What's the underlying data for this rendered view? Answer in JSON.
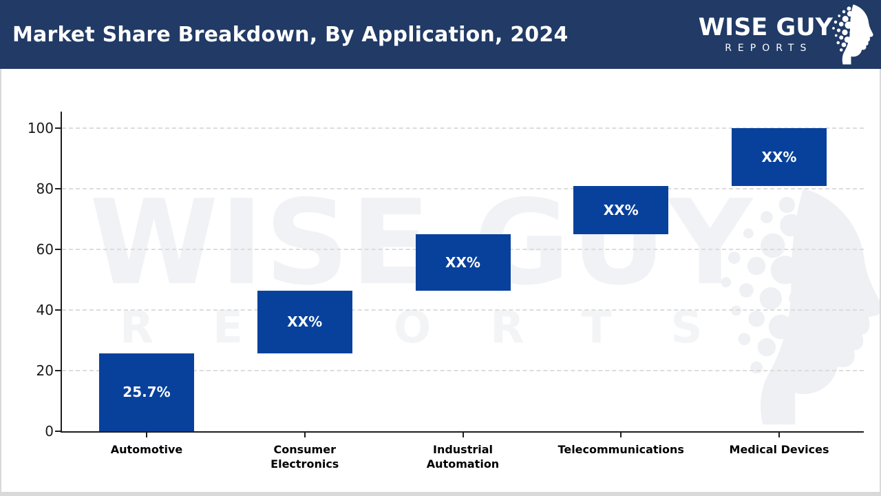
{
  "header": {
    "title": "Market Share Breakdown, By Application, 2024",
    "brand": {
      "name": "WISE GUY",
      "sub": "REPORTS"
    }
  },
  "watermark": {
    "line1": "WISE GUY",
    "line2": "REPORTS"
  },
  "colors": {
    "header_bg": "#213a66",
    "bar": "#08419c",
    "grid": "#dcdcdc",
    "axis": "#1d1d1d",
    "watermark_text": "#f1f2f5",
    "page_border": "#d9d9d9",
    "bar_label": "#ffffff"
  },
  "chart_data": {
    "type": "bar",
    "subtype": "waterfall",
    "title": "Market Share Breakdown, By Application, 2024",
    "xlabel": "",
    "ylabel": "",
    "categories": [
      "Automotive",
      "Consumer\nElectronics",
      "Industrial\nAutomation",
      "Telecommunications",
      "Medical Devices"
    ],
    "segments": [
      {
        "category": "Automotive",
        "start": 0,
        "end": 25.7,
        "label": "25.7%"
      },
      {
        "category": "Consumer Electronics",
        "start": 25.7,
        "end": 46.4,
        "label": "XX%"
      },
      {
        "category": "Industrial Automation",
        "start": 46.4,
        "end": 65.1,
        "label": "XX%"
      },
      {
        "category": "Telecommunications",
        "start": 65.1,
        "end": 80.8,
        "label": "XX%"
      },
      {
        "category": "Medical Devices",
        "start": 80.8,
        "end": 100,
        "label": "XX%"
      }
    ],
    "yticks": [
      0,
      20,
      40,
      60,
      80,
      100
    ],
    "ylim": [
      0,
      105
    ],
    "grid": "horizontal dashed",
    "legend": "none",
    "bar_color": "#08419c"
  }
}
